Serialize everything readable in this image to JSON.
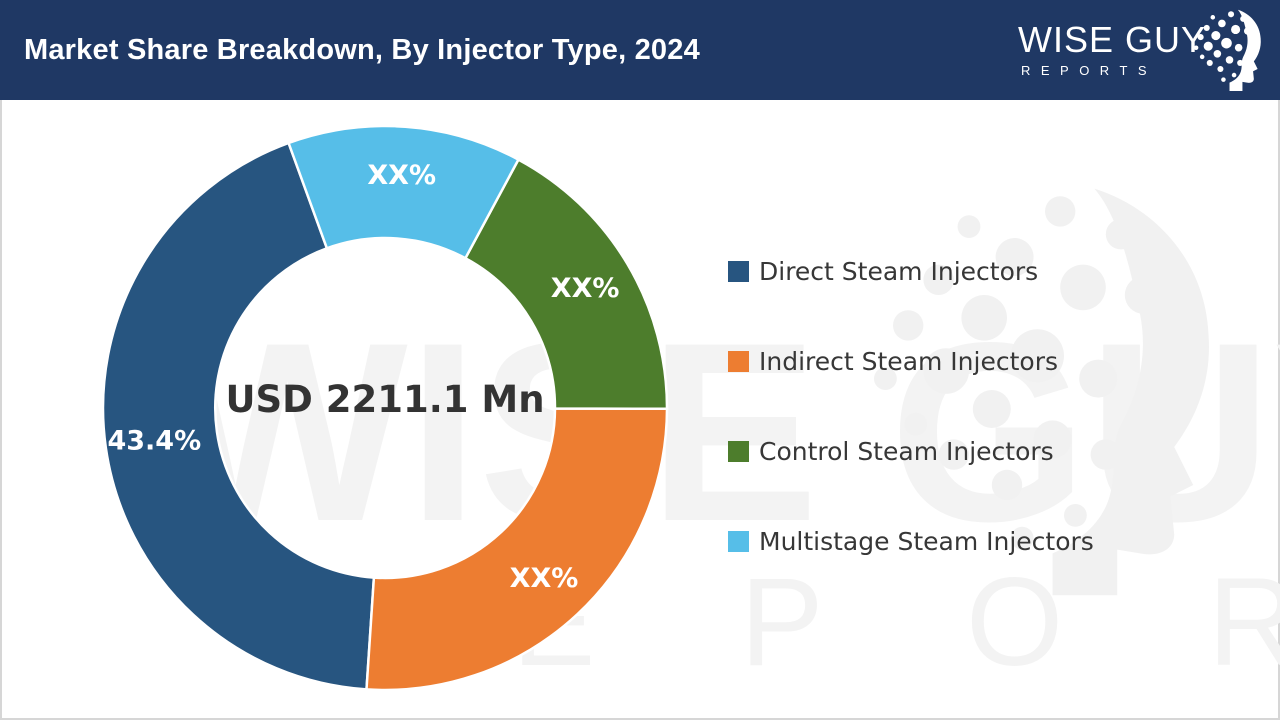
{
  "header": {
    "title": "Market Share Breakdown, By Injector Type, 2024",
    "bg_color": "#1F3864",
    "logo": {
      "name": "WISE GUY",
      "subtitle": "REPORTS"
    }
  },
  "chart_data": {
    "type": "pie",
    "donut": true,
    "title": "Market Share Breakdown, By Injector Type, 2024",
    "center_label": "USD 2211.1 Mn",
    "legend_position": "right",
    "start_angle_deg": 110,
    "counterclockwise": true,
    "categories": [
      "Direct Steam Injectors",
      "Indirect Steam Injectors",
      "Control Steam Injectors",
      "Multistage Steam Injectors"
    ],
    "values": [
      43.4,
      26.0,
      17.2,
      13.4
    ],
    "slice_labels": [
      "43.4%",
      "XX%",
      "XX%",
      "XX%"
    ],
    "colors": [
      "#275580",
      "#ED7D31",
      "#4D7D2C",
      "#56BEE8"
    ],
    "slice_label_color": "#ffffff",
    "center_label_color": "#333333"
  },
  "watermark": {
    "line1": "WISE GUY",
    "line2": "R E P O R T S"
  }
}
